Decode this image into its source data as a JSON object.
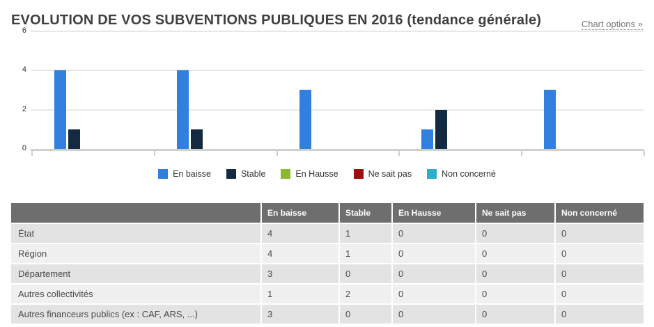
{
  "header": {
    "title": "EVOLUTION DE VOS SUBVENTIONS PUBLIQUES EN 2016 (tendance générale)",
    "chart_options_label": "Chart options »"
  },
  "chart_data": {
    "type": "bar",
    "title": "EVOLUTION DE VOS SUBVENTIONS PUBLIQUES EN 2016 (tendance générale)",
    "categories": [
      "État",
      "Région",
      "Département",
      "Autres collectivités",
      "Autres financeurs publics (ex : CAF, ARS, ...)"
    ],
    "series": [
      {
        "name": "En baisse",
        "color": "#3280dd",
        "values": [
          4,
          4,
          3,
          1,
          3
        ]
      },
      {
        "name": "Stable",
        "color": "#132a40",
        "values": [
          1,
          1,
          0,
          2,
          0
        ]
      },
      {
        "name": "En Hausse",
        "color": "#8cba2d",
        "values": [
          0,
          0,
          0,
          0,
          0
        ]
      },
      {
        "name": "Ne sait pas",
        "color": "#9e0d12",
        "values": [
          0,
          0,
          0,
          0,
          0
        ]
      },
      {
        "name": "Non concerné",
        "color": "#2baecb",
        "values": [
          0,
          0,
          0,
          0,
          0
        ]
      }
    ],
    "xlabel": "",
    "ylabel": "",
    "ylim": [
      0,
      6
    ],
    "yticks": [
      0,
      2,
      4,
      6
    ],
    "grid": true,
    "x_tick_labels_visible": false,
    "legend_position": "bottom"
  },
  "table": {
    "columns": [
      "",
      "En baisse",
      "Stable",
      "En Hausse",
      "Ne sait pas",
      "Non concerné"
    ],
    "rows": [
      {
        "label": "État",
        "values": [
          "4",
          "1",
          "0",
          "0",
          "0"
        ]
      },
      {
        "label": "Région",
        "values": [
          "4",
          "1",
          "0",
          "0",
          "0"
        ]
      },
      {
        "label": "Département",
        "values": [
          "3",
          "0",
          "0",
          "0",
          "0"
        ]
      },
      {
        "label": "Autres collectivités",
        "values": [
          "1",
          "2",
          "0",
          "0",
          "0"
        ]
      },
      {
        "label": "Autres financeurs publics (ex : CAF, ARS, ...)",
        "values": [
          "3",
          "0",
          "0",
          "0",
          "0"
        ]
      }
    ]
  }
}
